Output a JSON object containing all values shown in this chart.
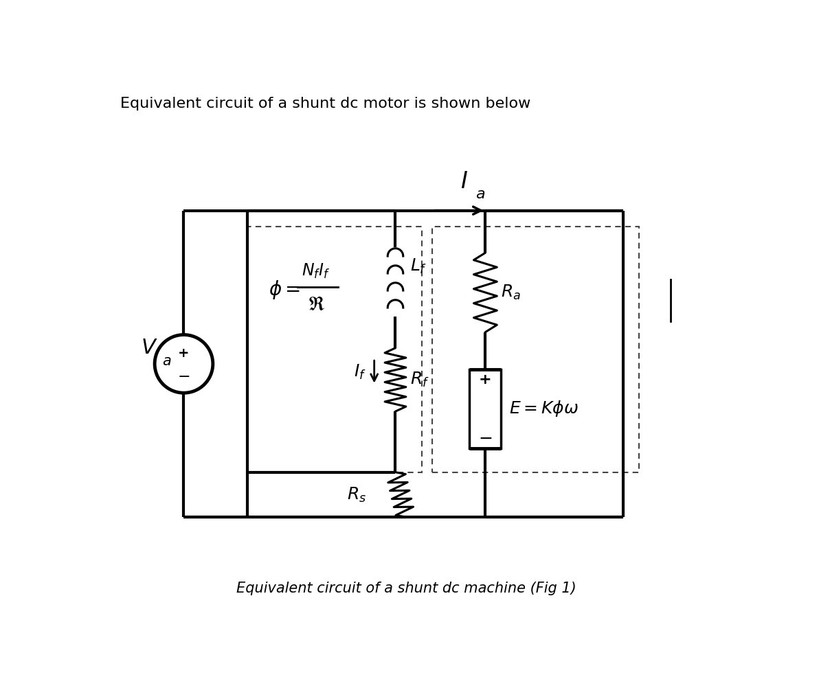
{
  "title": "Equivalent circuit of a shunt dc motor is shown below",
  "caption": "Equivalent circuit of a shunt dc machine (Fig 1)",
  "bg_color": "#ffffff",
  "line_color": "#000000",
  "fig_width": 11.92,
  "fig_height": 10.02
}
